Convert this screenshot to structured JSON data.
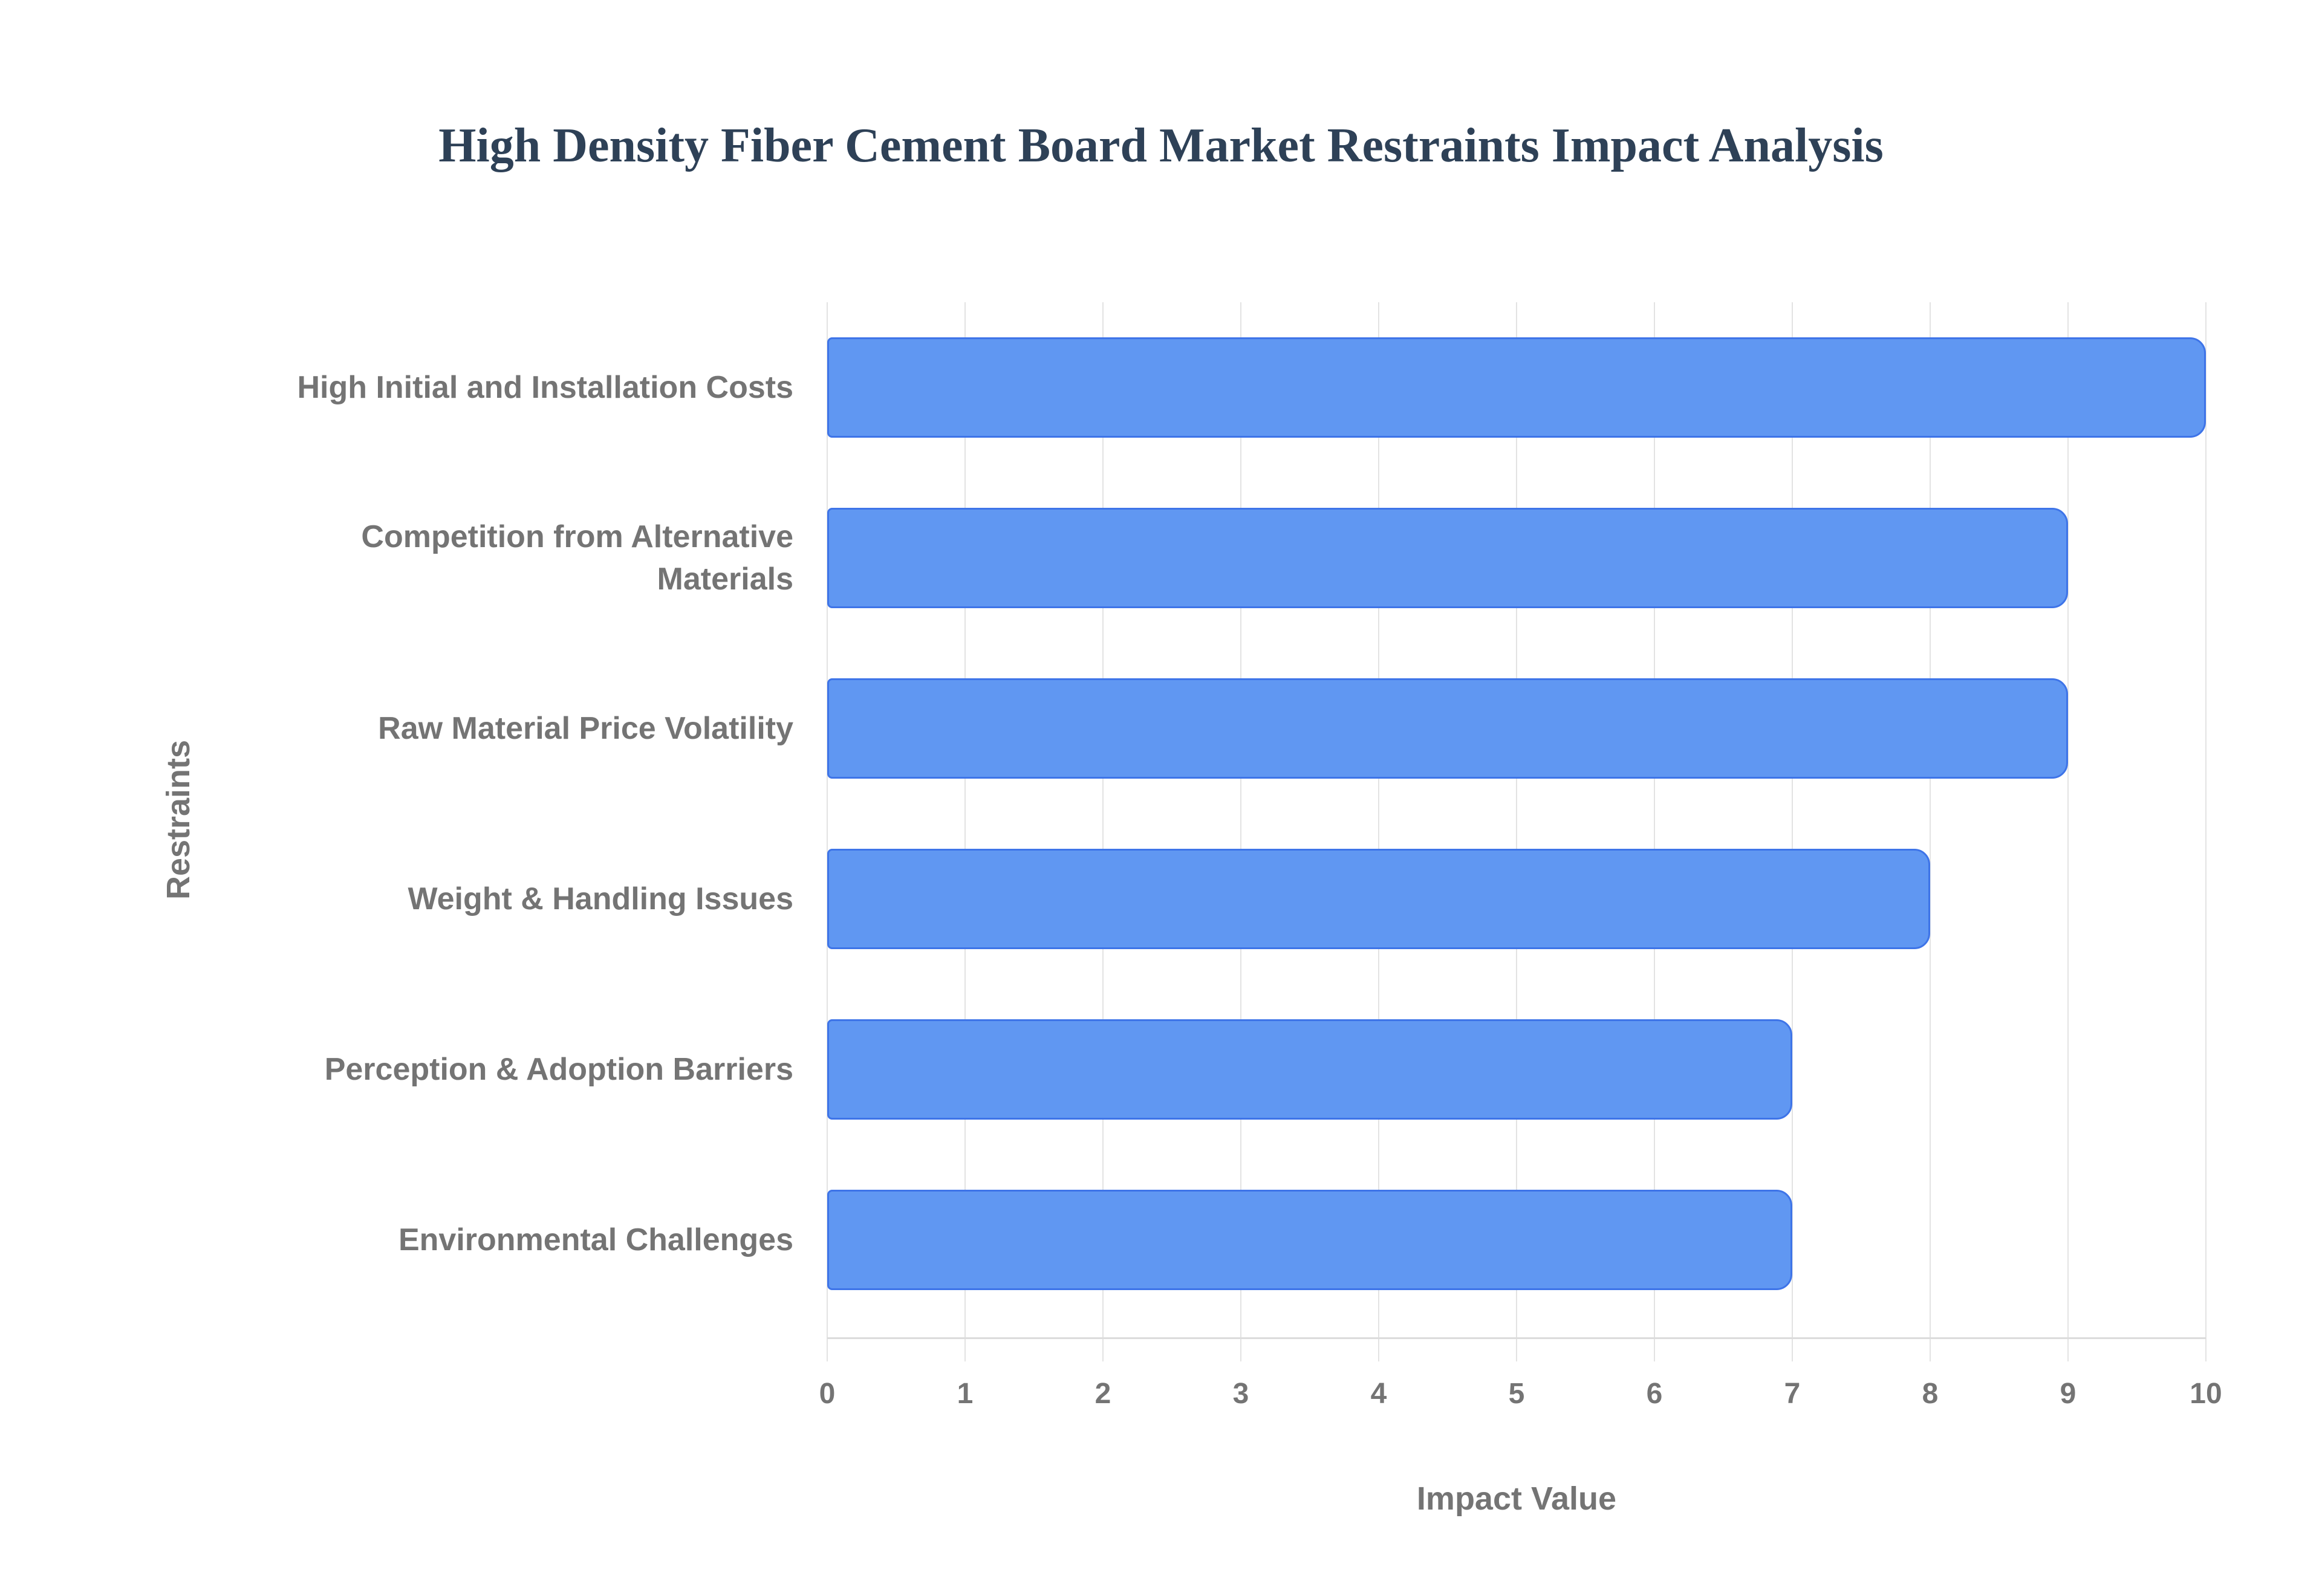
{
  "title": "High Density Fiber Cement Board Market Restraints Impact Analysis",
  "chart_data": {
    "type": "bar",
    "orientation": "horizontal",
    "title": "High Density Fiber Cement Board Market Restraints Impact Analysis",
    "categories": [
      "High Initial and Installation Costs",
      "Competition from Alternative Materials",
      "Raw Material Price Volatility",
      "Weight & Handling Issues",
      "Perception & Adoption Barriers",
      "Environmental Challenges"
    ],
    "values": [
      10,
      9,
      9,
      8,
      7,
      7
    ],
    "xlabel": "Impact Value",
    "ylabel": "Restraints",
    "xlim": [
      0,
      10
    ],
    "xticks": [
      0,
      1,
      2,
      3,
      4,
      5,
      6,
      7,
      8,
      9,
      10
    ],
    "grid": true,
    "legend": "none",
    "colors": {
      "bar_fill": "#6097f2",
      "bar_border": "#3e74e8",
      "gridline": "#e3e3e3",
      "axis_line": "#dcdcdc",
      "label_text": "#747474",
      "title_text": "#2e4157",
      "background": "#ffffff"
    }
  }
}
